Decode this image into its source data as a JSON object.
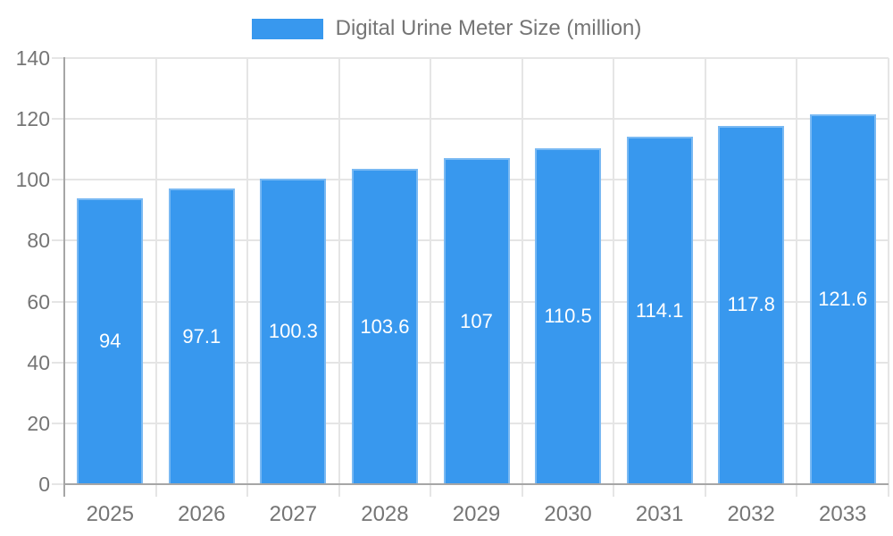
{
  "chart_data": {
    "type": "bar",
    "title": "Digital Urine Meter Size (million)",
    "legend": "Digital Urine Meter Size (million)",
    "legend_position": "top",
    "categories": [
      "2025",
      "2026",
      "2027",
      "2028",
      "2029",
      "2030",
      "2031",
      "2032",
      "2033"
    ],
    "values": [
      94,
      97.1,
      100.3,
      103.6,
      107,
      110.5,
      114.1,
      117.8,
      121.6
    ],
    "value_labels": [
      "94",
      "97.1",
      "100.3",
      "103.6",
      "107",
      "110.5",
      "114.1",
      "117.8",
      "121.6"
    ],
    "xlabel": "",
    "ylabel": "",
    "ylim": [
      0,
      140
    ],
    "ytick_step": 20,
    "yticks": [
      0,
      20,
      40,
      60,
      80,
      100,
      120,
      140
    ],
    "grid": true,
    "colors": {
      "bar_fill": "#3898ee",
      "bar_edge": "#79b9f3",
      "grid_line": "#e5e5e5",
      "axis_line": "#a6a6a6",
      "axis_text": "#757575",
      "value_text": "#ffffff",
      "background": "#ffffff"
    }
  }
}
